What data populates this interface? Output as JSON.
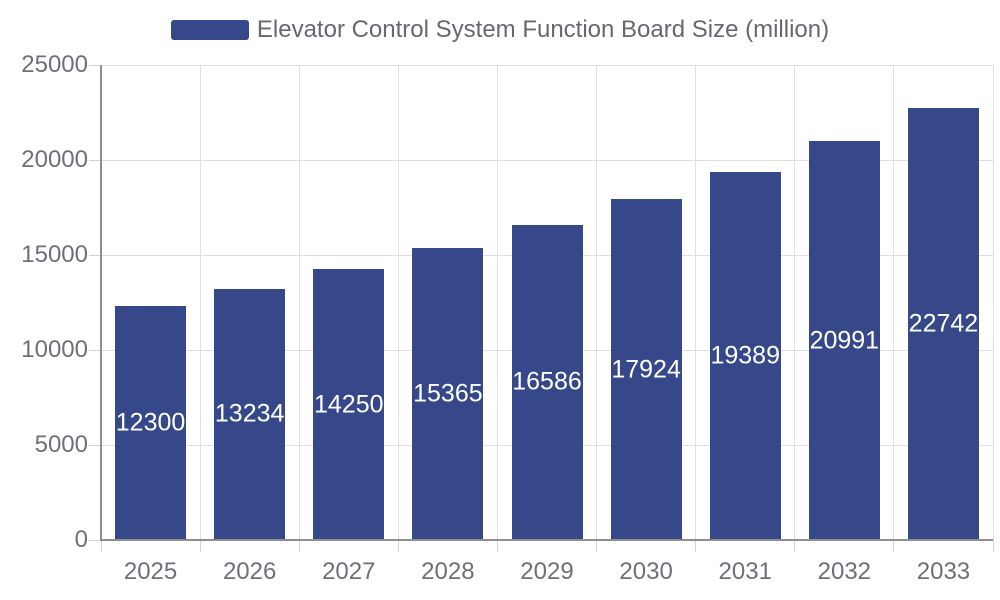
{
  "chart_data": {
    "type": "bar",
    "title": "Elevator Control System Function Board Size (million)",
    "legend_entries": [
      "Elevator Control System Function Board Size (million)"
    ],
    "legend_position": "top-center",
    "categories": [
      "2025",
      "2026",
      "2027",
      "2028",
      "2029",
      "2030",
      "2031",
      "2032",
      "2033"
    ],
    "values": [
      12300,
      13234,
      14250,
      15365,
      16586,
      17924,
      19389,
      20991,
      22742
    ],
    "value_labels_shown": true,
    "value_label_position": "inside-middle",
    "xlabel": "",
    "ylabel": "",
    "ylim": [
      0,
      25000
    ],
    "ytick_values": [
      0,
      5000,
      10000,
      15000,
      20000,
      25000
    ],
    "ytick_labels": [
      "0",
      "5000",
      "10000",
      "15000",
      "20000",
      "25000"
    ],
    "grid": true,
    "colors": {
      "bar": "#36488a",
      "value_label": "#ffffff",
      "axis_label": "#6e7079",
      "legend_text": "#65696e",
      "gridline": "#e0e0e0",
      "tick": "#d2d2d2",
      "axis_line": "#8f8f8f",
      "background": "#ffffff"
    }
  }
}
